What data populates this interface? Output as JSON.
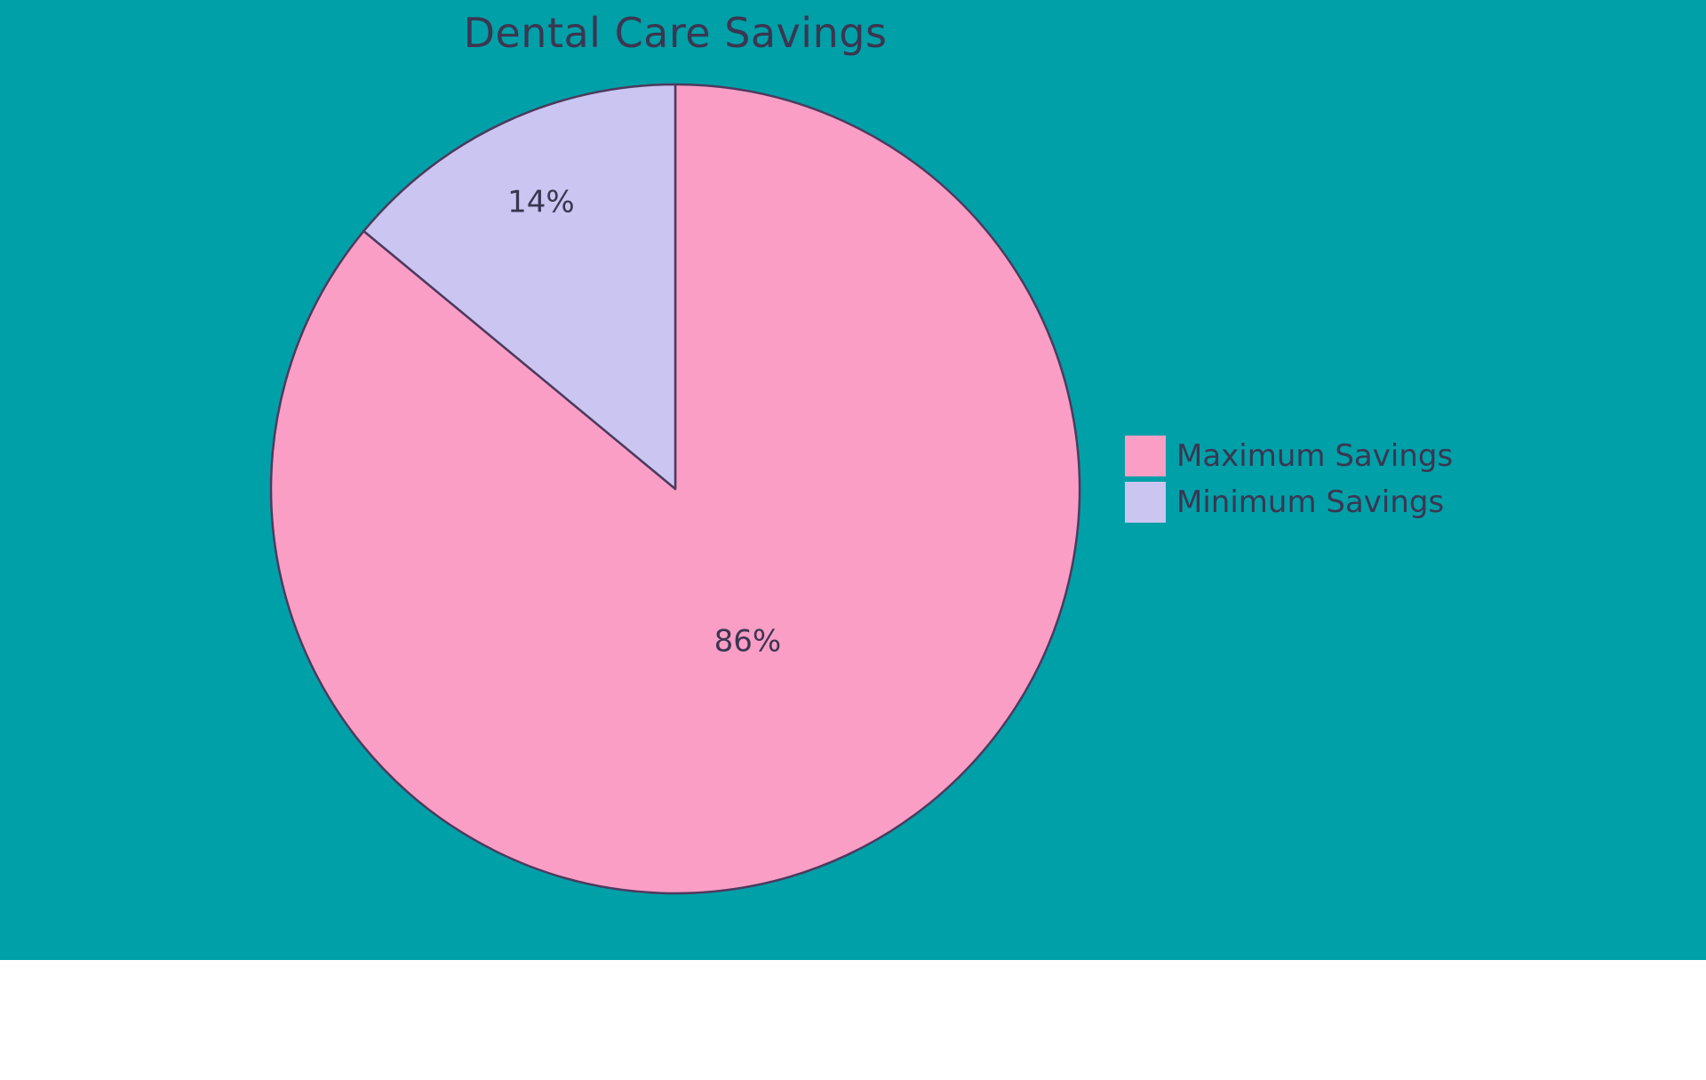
{
  "chart_data": {
    "type": "pie",
    "title": "Dental Care Savings",
    "labels": [
      "Maximum Savings",
      "Minimum Savings"
    ],
    "values": [
      86,
      14
    ],
    "value_labels": [
      "86%",
      "14%"
    ],
    "colors": [
      "#FA9EC6",
      "#CBC5F2"
    ],
    "background_color": "#00A0A8",
    "outline_color": "#4D3A5E",
    "text_color": "#3B3651",
    "legend_position": "right",
    "start_angle_deg": -90,
    "direction": "clockwise"
  }
}
